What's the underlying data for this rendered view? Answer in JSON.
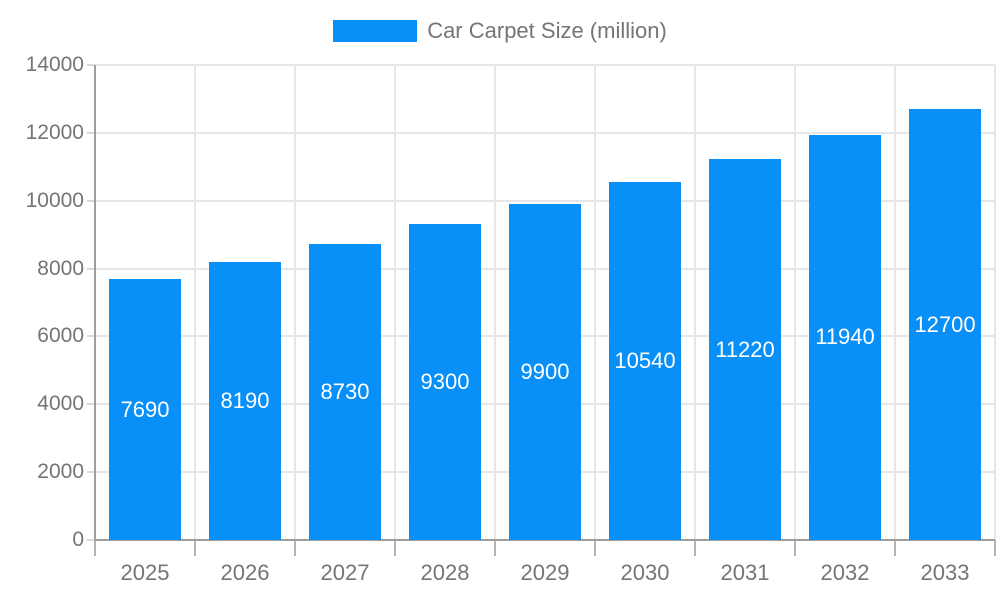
{
  "chart_data": {
    "type": "bar",
    "title": "",
    "xlabel": "",
    "ylabel": "",
    "categories": [
      "2025",
      "2026",
      "2027",
      "2028",
      "2029",
      "2030",
      "2031",
      "2032",
      "2033"
    ],
    "series": [
      {
        "name": "Car Carpet Size (million)",
        "values": [
          7690,
          8190,
          8730,
          9300,
          9900,
          10540,
          11220,
          11940,
          12700
        ]
      }
    ],
    "ylim": [
      0,
      14000
    ],
    "yticks": [
      0,
      2000,
      4000,
      6000,
      8000,
      10000,
      12000,
      14000
    ],
    "grid": true,
    "legend_position": "top",
    "value_label_position": "inside-center",
    "colors": {
      "bar": "#0890F8",
      "value_label_text": "#FFFFFF",
      "axis_text": "#757575",
      "legend_text": "#757575",
      "gridline": "#E6E6E6",
      "y_tick": "#D9D9D9",
      "x_tick": "#B3B3B3",
      "axis_line": "#9E9E9E",
      "background": "#FFFFFF"
    }
  }
}
